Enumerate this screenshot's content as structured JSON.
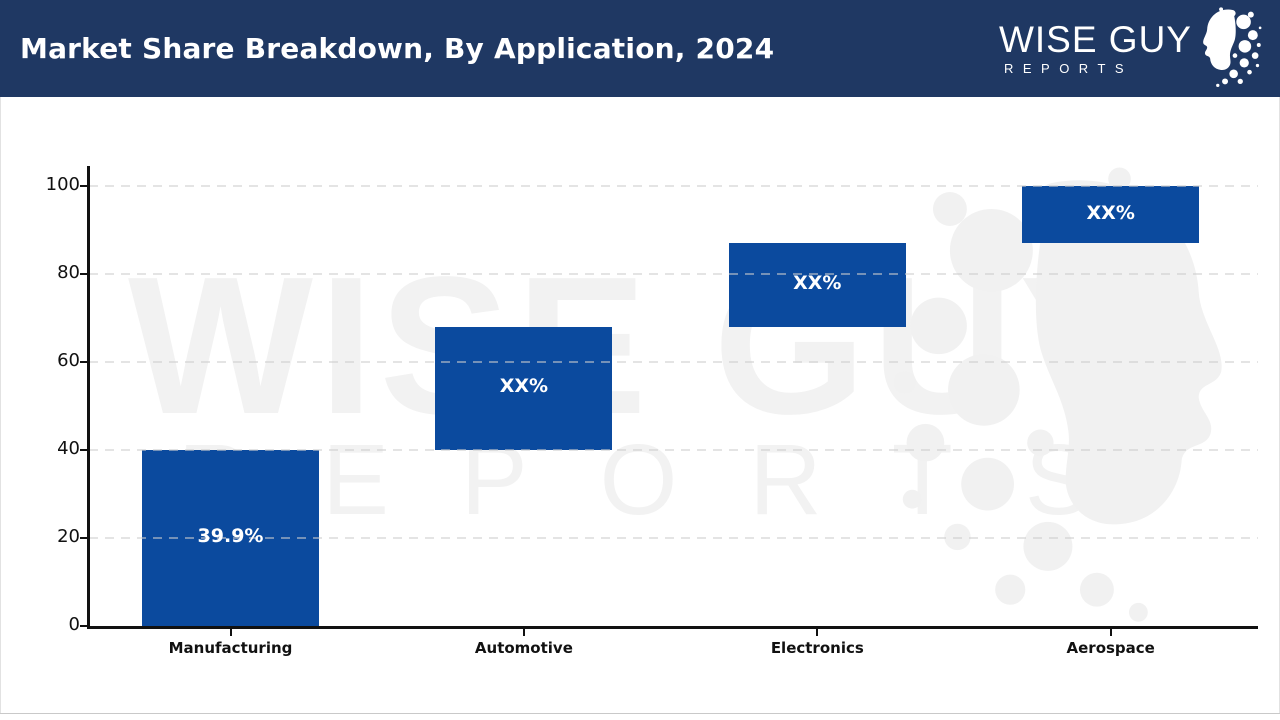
{
  "header": {
    "title": "Market Share Breakdown, By Application, 2024",
    "logo": {
      "wordmark": "WISE GUY",
      "subtitle": "REPORTS"
    }
  },
  "watermark": {
    "wordmark": "WISE GUY",
    "subtitle": "REPORTS"
  },
  "colors": {
    "header_bg": "#1f3863",
    "bar": "#0b4a9e",
    "grid": "rgba(205,205,205,0.55)",
    "axis": "#111111",
    "watermark": "#f1f1f1",
    "page_bg": "#ffffff",
    "border": "#c9c9c9",
    "bar_label": "#ffffff"
  },
  "chart_data": {
    "type": "bar",
    "subtype": "waterfall-floating-bars",
    "title": "Market Share Breakdown, By Application, 2024",
    "categories": [
      "Manufacturing",
      "Automotive",
      "Electronics",
      "Aerospace"
    ],
    "segments": [
      {
        "category": "Manufacturing",
        "start": 0,
        "end": 39.9,
        "label": "39.9%"
      },
      {
        "category": "Automotive",
        "start": 40,
        "end": 68,
        "label": "XX%"
      },
      {
        "category": "Electronics",
        "start": 68,
        "end": 87,
        "label": "XX%"
      },
      {
        "category": "Aerospace",
        "start": 87,
        "end": 100,
        "label": "XX%"
      }
    ],
    "xlabel": "",
    "ylabel": "",
    "yticks": [
      0,
      20,
      40,
      60,
      80,
      100
    ],
    "ylim": [
      0,
      104.5
    ],
    "grid": "horizontal-dashed-over-bars",
    "legend": "none",
    "bar_color": "#0b4a9e",
    "label_color": "#ffffff"
  }
}
